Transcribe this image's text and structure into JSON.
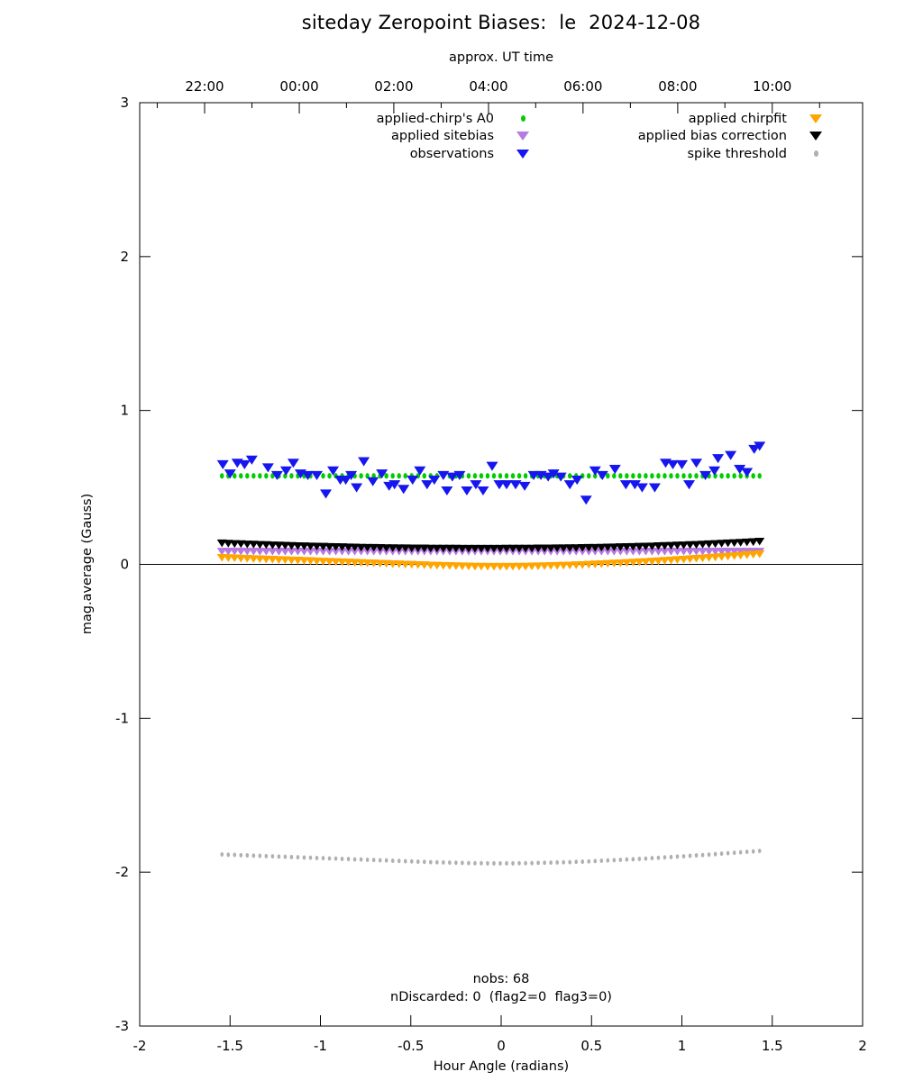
{
  "page": {
    "background": "#ffffff"
  },
  "title": "siteday Zeropoint Biases:  le  2024-12-08",
  "annotations": {
    "nobs": "nobs: 68",
    "ndiscarded": "nDiscarded: 0  (flag2=0  flag3=0)"
  },
  "legend": {
    "left": [
      {
        "label": "applied-chirp's A0",
        "marker": "dot",
        "color": "#00cc00"
      },
      {
        "label": "applied sitebias",
        "marker": "triangle-down",
        "color": "#b67ae0"
      },
      {
        "label": "observations",
        "marker": "triangle-down",
        "color": "#1616ef"
      }
    ],
    "right": [
      {
        "label": "applied chirpfit",
        "marker": "triangle-down",
        "color": "#ffa500"
      },
      {
        "label": "applied bias correction",
        "marker": "triangle-down",
        "color": "#000000"
      },
      {
        "label": "spike threshold",
        "marker": "dot",
        "color": "#b0b0b0"
      }
    ]
  },
  "chart_data": {
    "type": "scatter",
    "title": "siteday Zeropoint Biases:  le  2024-12-08",
    "xlabel": "Hour Angle (radians)",
    "ylabel": "mag.average (Gauss)",
    "x2label": "approx. UT time",
    "xlim": [
      -2,
      2
    ],
    "ylim": [
      -3,
      3
    ],
    "grid": "off",
    "legend_position": "top-inside-two-columns",
    "x_ticks": [
      {
        "v": -2,
        "label": "-2"
      },
      {
        "v": -1.5,
        "label": "-1.5"
      },
      {
        "v": -1,
        "label": "-1"
      },
      {
        "v": -0.5,
        "label": "-0.5"
      },
      {
        "v": 0,
        "label": "0"
      },
      {
        "v": 0.5,
        "label": "0.5"
      },
      {
        "v": 1,
        "label": "1"
      },
      {
        "v": 1.5,
        "label": "1.5"
      },
      {
        "v": 2,
        "label": "2"
      }
    ],
    "y_ticks": [
      {
        "v": -3,
        "label": "-3"
      },
      {
        "v": -2,
        "label": "-2"
      },
      {
        "v": -1,
        "label": "-1"
      },
      {
        "v": 0,
        "label": "0"
      },
      {
        "v": 1,
        "label": "1"
      },
      {
        "v": 2,
        "label": "2"
      },
      {
        "v": 3,
        "label": "3"
      }
    ],
    "ut_ticks": [
      {
        "v": -1.903,
        "label": ""
      },
      {
        "v": -1.641,
        "label": "22:00"
      },
      {
        "v": -1.379,
        "label": ""
      },
      {
        "v": -1.117,
        "label": "00:00"
      },
      {
        "v": -0.856,
        "label": ""
      },
      {
        "v": -0.594,
        "label": "02:00"
      },
      {
        "v": -0.332,
        "label": ""
      },
      {
        "v": -0.07,
        "label": "04:00"
      },
      {
        "v": 0.191,
        "label": ""
      },
      {
        "v": 0.453,
        "label": "06:00"
      },
      {
        "v": 0.715,
        "label": ""
      },
      {
        "v": 0.977,
        "label": "08:00"
      },
      {
        "v": 1.238,
        "label": ""
      },
      {
        "v": 1.5,
        "label": "10:00"
      },
      {
        "v": 1.762,
        "label": ""
      }
    ],
    "zero_line": true,
    "x_grid": [
      -1.545,
      -1.51,
      -1.475,
      -1.44,
      -1.405,
      -1.37,
      -1.335,
      -1.3,
      -1.265,
      -1.23,
      -1.195,
      -1.16,
      -1.125,
      -1.09,
      -1.055,
      -1.02,
      -0.985,
      -0.95,
      -0.915,
      -0.88,
      -0.845,
      -0.81,
      -0.775,
      -0.74,
      -0.705,
      -0.67,
      -0.635,
      -0.6,
      -0.565,
      -0.53,
      -0.495,
      -0.46,
      -0.425,
      -0.39,
      -0.355,
      -0.32,
      -0.285,
      -0.25,
      -0.215,
      -0.18,
      -0.145,
      -0.11,
      -0.075,
      -0.04,
      -0.005,
      0.03,
      0.065,
      0.1,
      0.135,
      0.17,
      0.205,
      0.24,
      0.275,
      0.31,
      0.345,
      0.38,
      0.415,
      0.45,
      0.485,
      0.52,
      0.555,
      0.59,
      0.625,
      0.66,
      0.695,
      0.73,
      0.765,
      0.8,
      0.835,
      0.87,
      0.905,
      0.94,
      0.975,
      1.01,
      1.045,
      1.08,
      1.115,
      1.15,
      1.185,
      1.22,
      1.255,
      1.29,
      1.325,
      1.36,
      1.395,
      1.43
    ],
    "series": [
      {
        "name": "applied-chirp's A0",
        "marker": "dot",
        "color": "#00cc00",
        "size": 3.1,
        "x": "grid",
        "y_const": 0.575
      },
      {
        "name": "applied sitebias",
        "marker": "triangle-down",
        "color": "#b67ae0",
        "size": 5.5,
        "x": "grid",
        "y_const": 0.085
      },
      {
        "name": "observations",
        "marker": "triangle-down",
        "color": "#1616ef",
        "size": 6.5,
        "x": [
          -1.54,
          -1.5,
          -1.46,
          -1.42,
          -1.38,
          -1.29,
          -1.24,
          -1.19,
          -1.15,
          -1.11,
          -1.07,
          -1.02,
          -0.97,
          -0.93,
          -0.89,
          -0.86,
          -0.83,
          -0.8,
          -0.76,
          -0.71,
          -0.66,
          -0.62,
          -0.59,
          -0.54,
          -0.49,
          -0.45,
          -0.41,
          -0.37,
          -0.32,
          -0.3,
          -0.27,
          -0.23,
          -0.19,
          -0.14,
          -0.1,
          -0.05,
          -0.01,
          0.03,
          0.08,
          0.13,
          0.18,
          0.22,
          0.26,
          0.29,
          0.33,
          0.38,
          0.42,
          0.47,
          0.52,
          0.56,
          0.63,
          0.69,
          0.74,
          0.78,
          0.85,
          0.91,
          0.95,
          1.0,
          1.04,
          1.08,
          1.13,
          1.18,
          1.2,
          1.27,
          1.32,
          1.36,
          1.4,
          1.43
        ],
        "y": [
          0.65,
          0.59,
          0.66,
          0.65,
          0.68,
          0.63,
          0.58,
          0.61,
          0.66,
          0.59,
          0.58,
          0.58,
          0.46,
          0.61,
          0.55,
          0.55,
          0.58,
          0.5,
          0.67,
          0.54,
          0.59,
          0.51,
          0.52,
          0.49,
          0.55,
          0.61,
          0.52,
          0.55,
          0.58,
          0.48,
          0.57,
          0.58,
          0.48,
          0.52,
          0.48,
          0.64,
          0.52,
          0.52,
          0.52,
          0.51,
          0.58,
          0.58,
          0.57,
          0.59,
          0.57,
          0.52,
          0.55,
          0.42,
          0.61,
          0.58,
          0.62,
          0.52,
          0.52,
          0.5,
          0.5,
          0.66,
          0.65,
          0.65,
          0.52,
          0.66,
          0.58,
          0.61,
          0.69,
          0.71,
          0.62,
          0.6,
          0.75,
          0.77
        ]
      },
      {
        "name": "applied chirpfit",
        "marker": "triangle-down",
        "color": "#ffa500",
        "size": 5.5,
        "x": "grid",
        "y": [
          0.045,
          0.043,
          0.042,
          0.04,
          0.039,
          0.037,
          0.036,
          0.034,
          0.033,
          0.031,
          0.03,
          0.028,
          0.027,
          0.025,
          0.024,
          0.022,
          0.021,
          0.019,
          0.018,
          0.016,
          0.015,
          0.013,
          0.012,
          0.01,
          0.009,
          0.007,
          0.006,
          0.004,
          0.003,
          0.001,
          0.0,
          -0.002,
          -0.003,
          -0.005,
          -0.006,
          -0.007,
          -0.008,
          -0.009,
          -0.01,
          -0.011,
          -0.012,
          -0.012,
          -0.013,
          -0.013,
          -0.013,
          -0.013,
          -0.013,
          -0.012,
          -0.012,
          -0.011,
          -0.01,
          -0.009,
          -0.008,
          -0.007,
          -0.006,
          -0.005,
          -0.003,
          -0.002,
          0.0,
          0.002,
          0.004,
          0.006,
          0.008,
          0.01,
          0.012,
          0.014,
          0.016,
          0.018,
          0.021,
          0.023,
          0.026,
          0.028,
          0.031,
          0.033,
          0.036,
          0.039,
          0.041,
          0.044,
          0.047,
          0.05,
          0.053,
          0.056,
          0.059,
          0.062,
          0.065,
          0.068
        ]
      },
      {
        "name": "applied bias correction",
        "marker": "triangle-down",
        "color": "#000000",
        "size": 5.5,
        "x": "grid",
        "y": [
          0.139,
          0.137,
          0.135,
          0.134,
          0.132,
          0.131,
          0.129,
          0.128,
          0.126,
          0.125,
          0.124,
          0.122,
          0.121,
          0.12,
          0.119,
          0.118,
          0.117,
          0.116,
          0.115,
          0.114,
          0.113,
          0.112,
          0.111,
          0.11,
          0.11,
          0.109,
          0.108,
          0.108,
          0.107,
          0.107,
          0.106,
          0.106,
          0.106,
          0.105,
          0.105,
          0.105,
          0.105,
          0.105,
          0.104,
          0.104,
          0.104,
          0.104,
          0.104,
          0.104,
          0.104,
          0.105,
          0.105,
          0.105,
          0.105,
          0.105,
          0.106,
          0.106,
          0.106,
          0.107,
          0.107,
          0.108,
          0.108,
          0.109,
          0.11,
          0.11,
          0.111,
          0.112,
          0.113,
          0.114,
          0.115,
          0.116,
          0.117,
          0.118,
          0.119,
          0.121,
          0.122,
          0.123,
          0.125,
          0.126,
          0.128,
          0.129,
          0.131,
          0.133,
          0.135,
          0.137,
          0.139,
          0.141,
          0.143,
          0.145,
          0.147,
          0.15
        ]
      },
      {
        "name": "spike threshold",
        "marker": "dot",
        "color": "#b0b0b0",
        "size": 2.5,
        "x": "grid",
        "y": [
          -1.885,
          -1.887,
          -1.888,
          -1.89,
          -1.891,
          -1.893,
          -1.894,
          -1.896,
          -1.897,
          -1.899,
          -1.9,
          -1.902,
          -1.903,
          -1.905,
          -1.906,
          -1.908,
          -1.909,
          -1.911,
          -1.912,
          -1.914,
          -1.915,
          -1.917,
          -1.918,
          -1.92,
          -1.921,
          -1.923,
          -1.924,
          -1.926,
          -1.927,
          -1.929,
          -1.93,
          -1.932,
          -1.933,
          -1.935,
          -1.936,
          -1.937,
          -1.938,
          -1.939,
          -1.94,
          -1.941,
          -1.942,
          -1.942,
          -1.943,
          -1.943,
          -1.943,
          -1.943,
          -1.943,
          -1.942,
          -1.942,
          -1.941,
          -1.94,
          -1.939,
          -1.938,
          -1.937,
          -1.936,
          -1.935,
          -1.933,
          -1.932,
          -1.93,
          -1.928,
          -1.926,
          -1.924,
          -1.922,
          -1.92,
          -1.918,
          -1.916,
          -1.914,
          -1.912,
          -1.909,
          -1.907,
          -1.904,
          -1.902,
          -1.899,
          -1.897,
          -1.894,
          -1.891,
          -1.889,
          -1.886,
          -1.883,
          -1.88,
          -1.877,
          -1.874,
          -1.871,
          -1.868,
          -1.865,
          -1.862
        ]
      }
    ]
  }
}
